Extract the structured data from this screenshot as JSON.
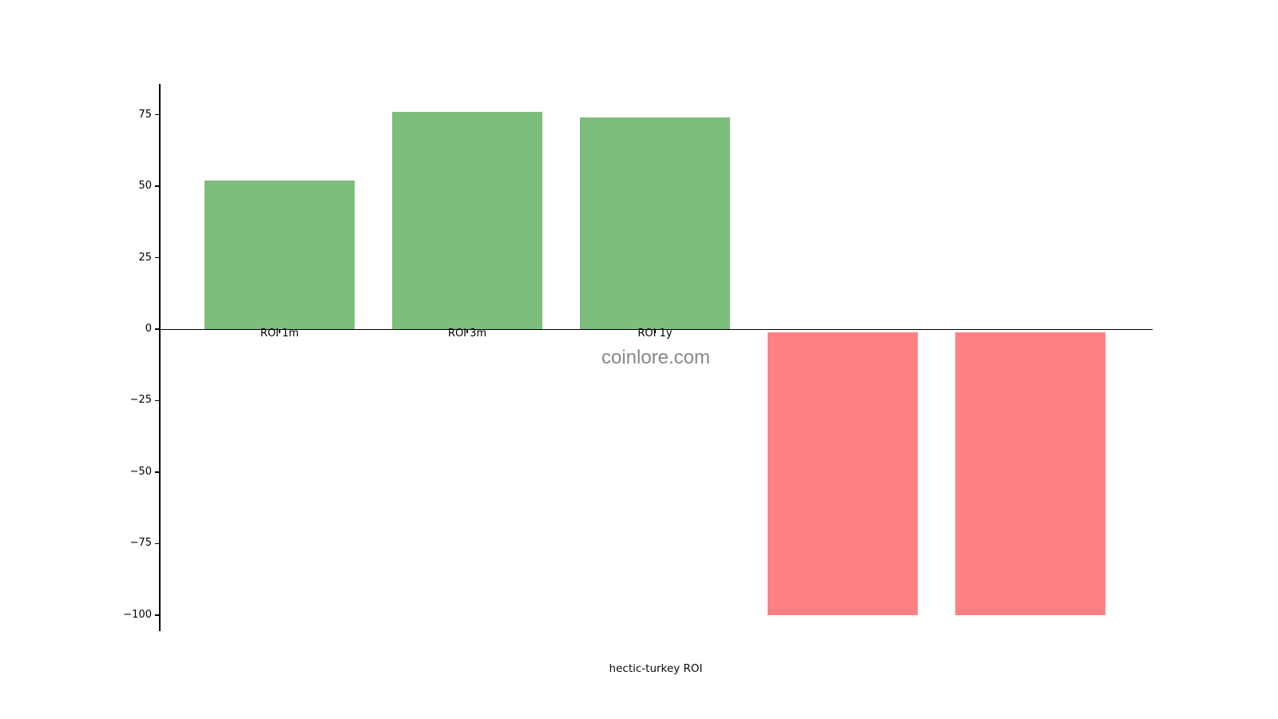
{
  "watermark": {
    "text": "coinlore.com",
    "color": "#888888"
  },
  "chart_data": {
    "type": "bar",
    "title": "",
    "xlabel": "hectic-turkey ROI",
    "ylabel": "",
    "categories": [
      "ROI 1m",
      "ROI 3m",
      "ROI 1y",
      "",
      ""
    ],
    "values": [
      52,
      76,
      74,
      -100,
      -100
    ],
    "bar_colors": [
      "#7CBE7C",
      "#7CBE7C",
      "#7CBE7C",
      "#FF8080",
      "#FF8080"
    ],
    "positive_color": "#7CBE7C",
    "negative_color": "#FF8080",
    "axis_color": "#000000",
    "yticks": [
      {
        "value": 75,
        "label": "75"
      },
      {
        "value": 50,
        "label": "50"
      },
      {
        "value": 25,
        "label": "25"
      },
      {
        "value": 0,
        "label": "0"
      },
      {
        "value": -25,
        "label": "−25"
      },
      {
        "value": -50,
        "label": "−50"
      },
      {
        "value": -75,
        "label": "−75"
      },
      {
        "value": -100,
        "label": "−100"
      }
    ],
    "ylim": [
      -105,
      86
    ],
    "grid": false,
    "legend": null
  }
}
